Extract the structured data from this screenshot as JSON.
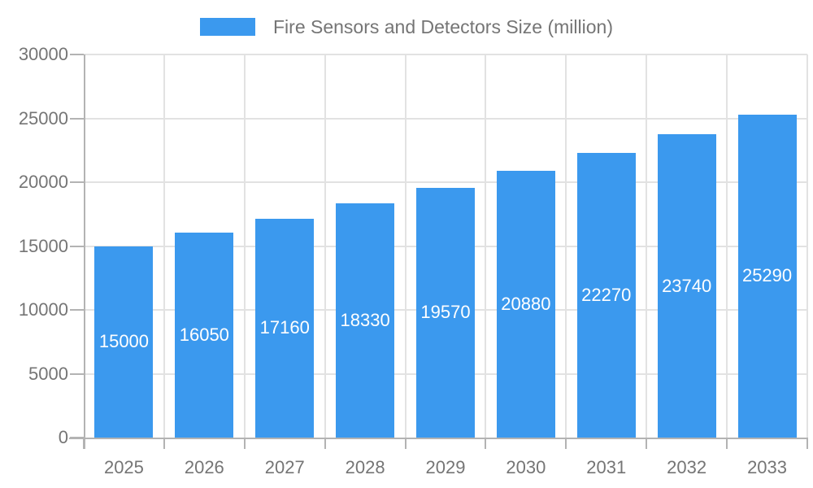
{
  "chart_data": {
    "type": "bar",
    "title": "Fire Sensors and Detectors Size (million)",
    "categories": [
      "2025",
      "2026",
      "2027",
      "2028",
      "2029",
      "2030",
      "2031",
      "2032",
      "2033"
    ],
    "values": [
      15000,
      16050,
      17160,
      18330,
      19570,
      20880,
      22270,
      23740,
      25290
    ],
    "xlabel": "",
    "ylabel": "",
    "ylim": [
      0,
      30000
    ],
    "yticks": [
      0,
      5000,
      10000,
      15000,
      20000,
      25000,
      30000
    ],
    "grid": true,
    "legend_position": "top",
    "bar_value_labels_inside": true,
    "colors": {
      "bar": "#3b99ee",
      "bar_label": "#ffffff",
      "grid": "#e2e2e2",
      "axis": "#b3b3b3",
      "text": "#757575",
      "background": "#ffffff"
    }
  }
}
